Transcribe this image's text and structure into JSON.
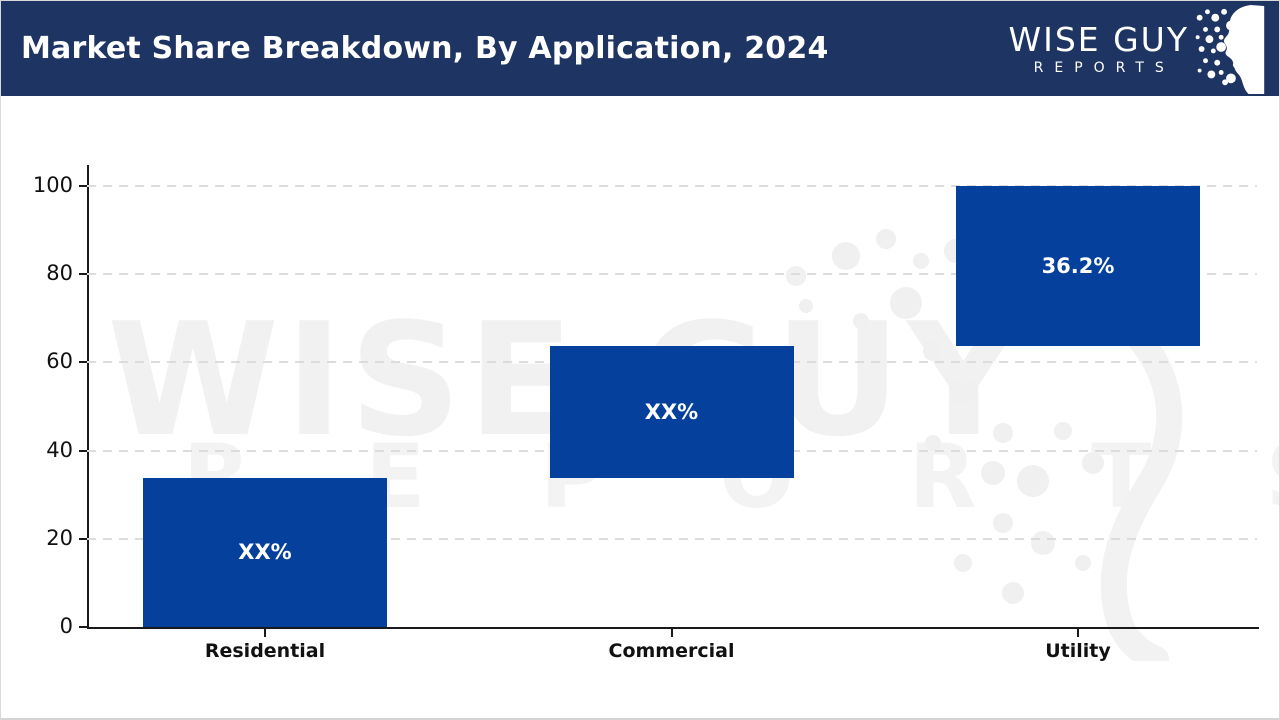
{
  "header": {
    "title": "Market Share Breakdown, By Application, 2024",
    "logo": {
      "wordmark": "WISE GUY",
      "tagline": "REPORTS"
    }
  },
  "watermark": {
    "wordmark": "WISE GUY",
    "tagline": "R E P O R T S"
  },
  "chart_data": {
    "type": "bar",
    "subtype": "floating-waterfall",
    "title": "Market Share Breakdown, By Application, 2024",
    "categories": [
      "Residential",
      "Commercial",
      "Utility"
    ],
    "segments": [
      {
        "category": "Residential",
        "start": 0,
        "end": 33.8,
        "label": "XX%"
      },
      {
        "category": "Commercial",
        "start": 33.8,
        "end": 63.8,
        "label": "XX%"
      },
      {
        "category": "Utility",
        "start": 63.8,
        "end": 100,
        "label": "36.2%"
      }
    ],
    "yticks": [
      0,
      20,
      40,
      60,
      80,
      100
    ],
    "ylim": [
      0,
      105
    ],
    "grid": "dashed horizontal",
    "legend": "none",
    "colors": {
      "bar": "#05419c",
      "bar_label": "#ffffff",
      "gridline": "#dcdcdc",
      "axis": "#1a1a1a",
      "header_bg": "#1e3462",
      "watermark": "#f1f1f1"
    }
  }
}
